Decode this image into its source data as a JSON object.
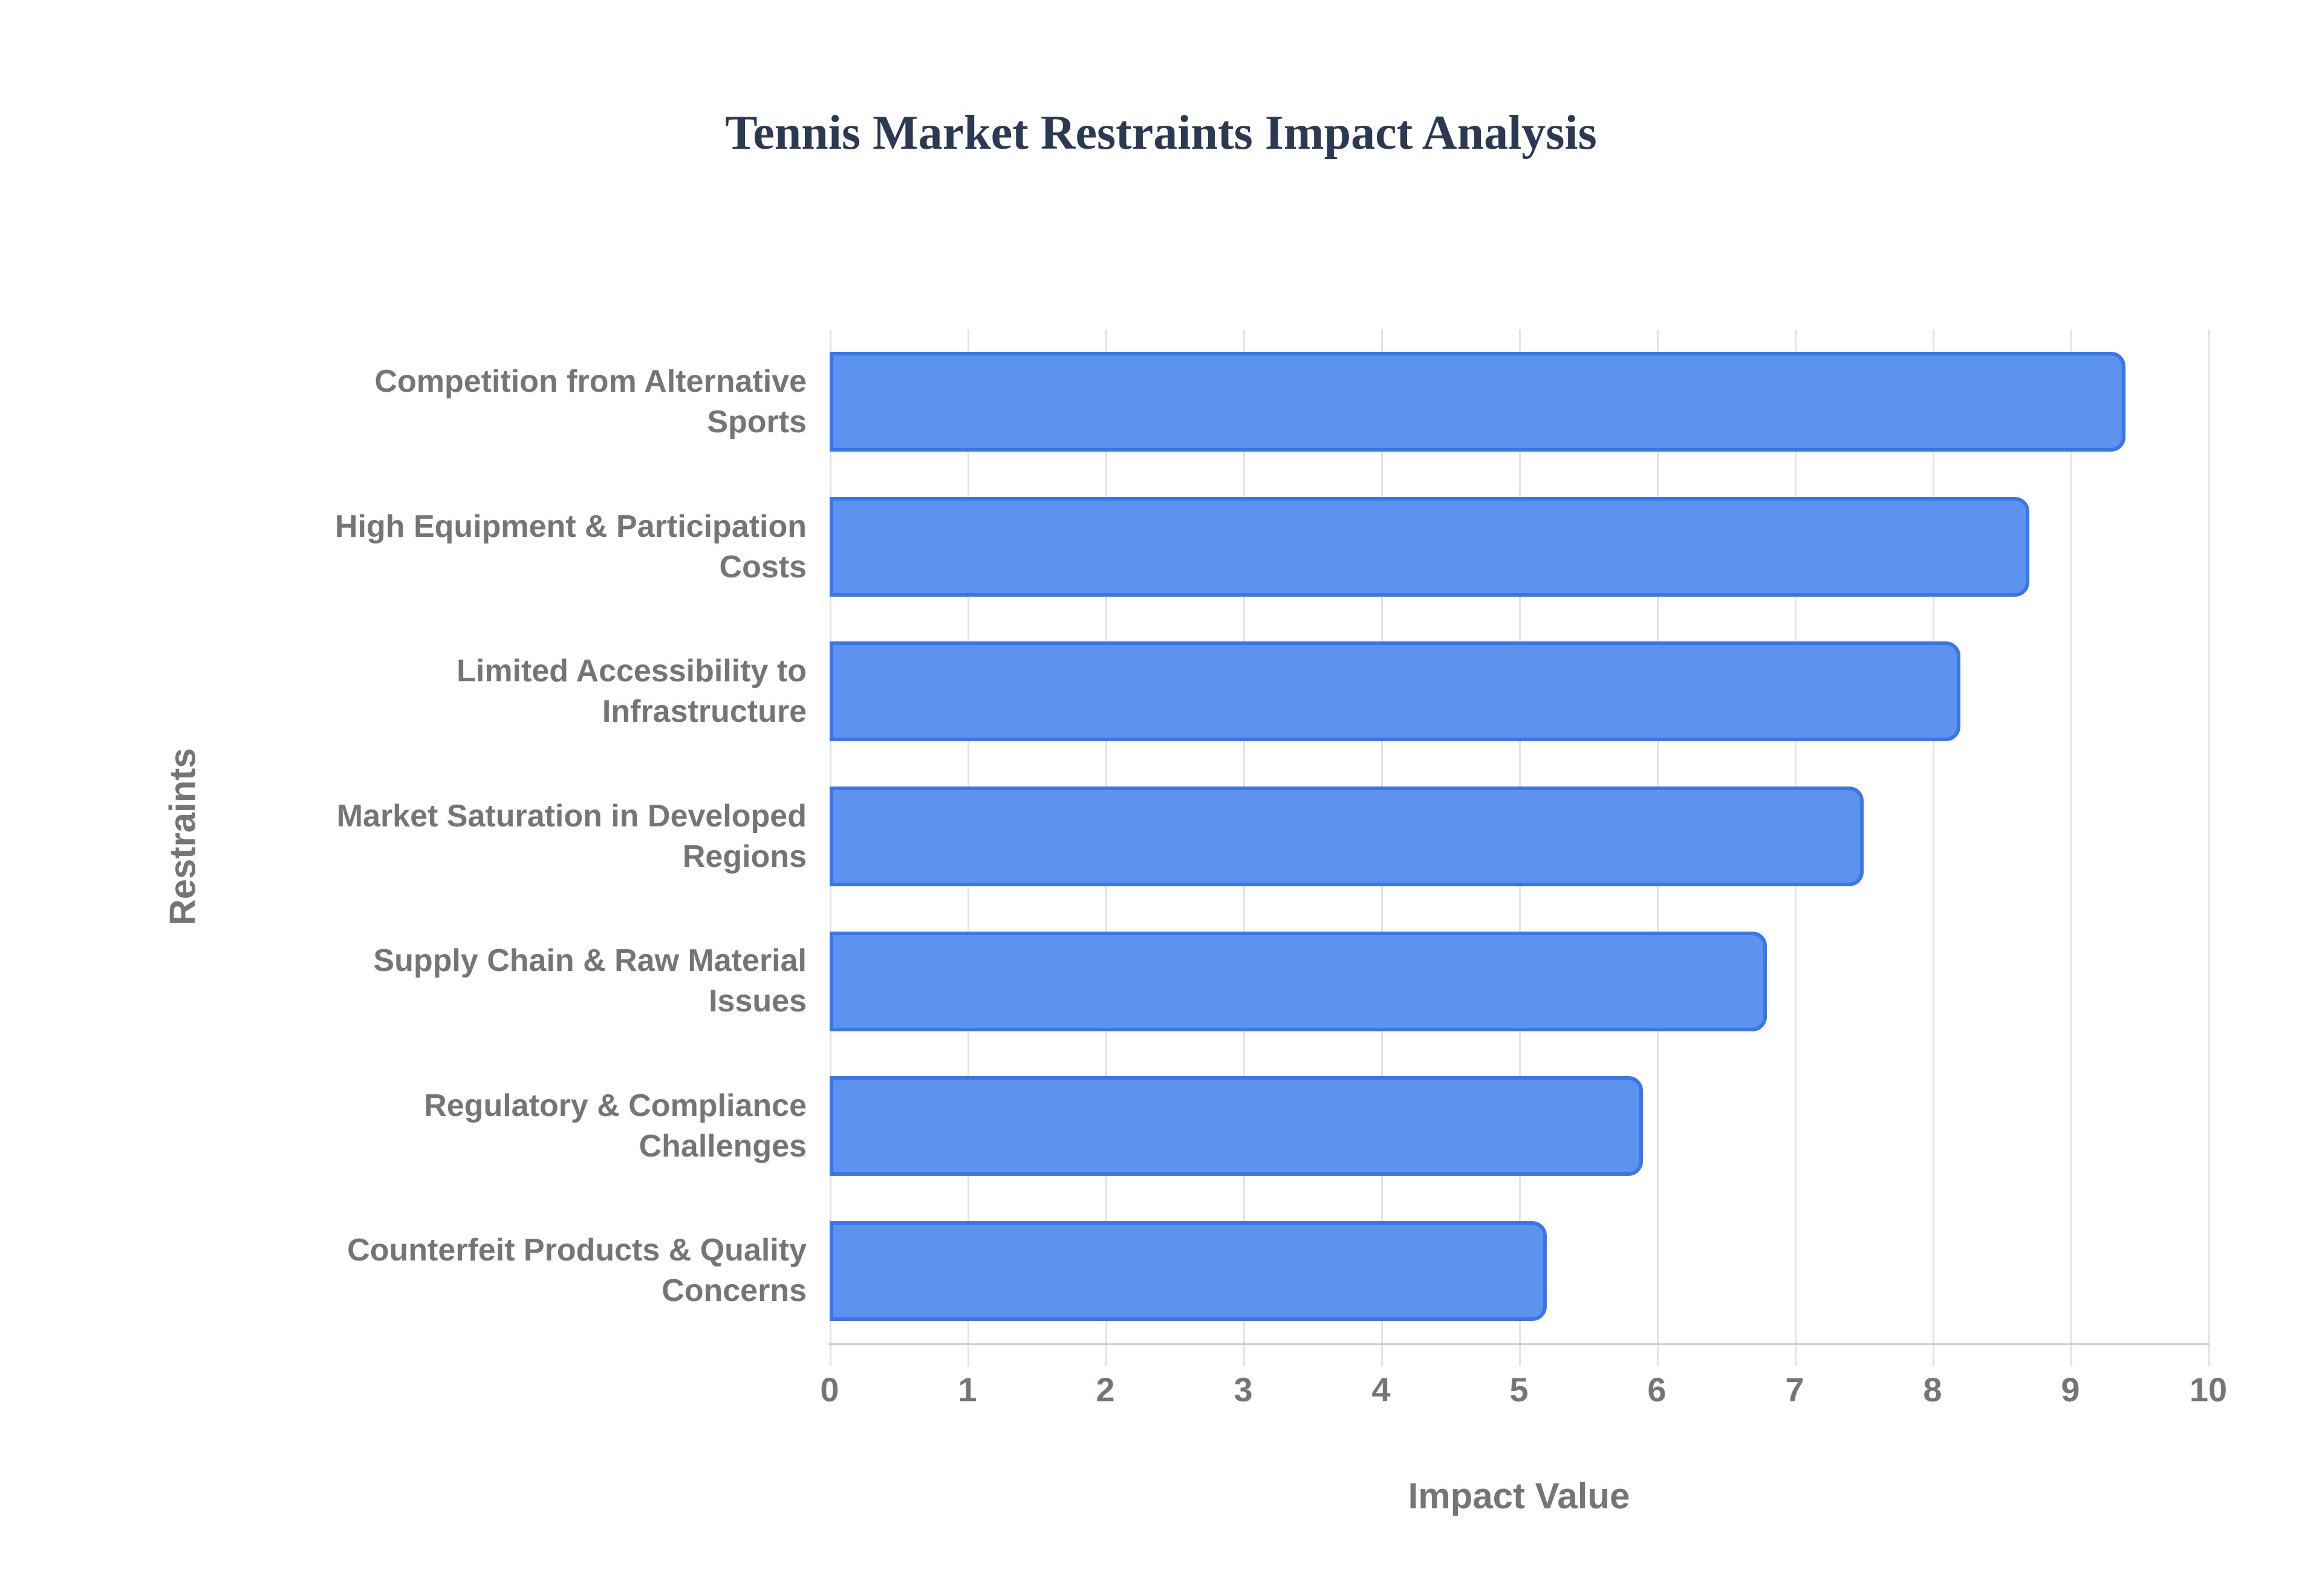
{
  "title": {
    "text": "Tennis Market Restraints Impact Analysis",
    "color": "#2b3a52"
  },
  "chart_data": {
    "type": "bar",
    "orientation": "horizontal",
    "title": "Tennis Market Restraints Impact Analysis",
    "categories": [
      "Competition from Alternative\nSports",
      "High Equipment & Participation\nCosts",
      "Limited Accessibility to\nInfrastructure",
      "Market Saturation in Developed\nRegions",
      "Supply Chain & Raw Material\nIssues",
      "Regulatory & Compliance\nChallenges",
      "Counterfeit Products & Quality\nConcerns"
    ],
    "values": [
      9.4,
      8.7,
      8.2,
      7.5,
      6.8,
      5.9,
      5.2
    ],
    "xlabel": "Impact Value",
    "ylabel": "Restraints",
    "xlim": [
      0,
      10
    ],
    "xticks": [
      "0",
      "1",
      "2",
      "3",
      "4",
      "5",
      "6",
      "7",
      "8",
      "9",
      "10"
    ],
    "grid": true,
    "legend": "none",
    "colors": {
      "bar_fill": "#5b93ee",
      "bar_stroke": "#3b76e8",
      "gridline": "#e3e3e3",
      "axis_line": "#cfcfcf",
      "label_gray": "#757575",
      "title_navy": "#2b3a52",
      "background": "#ffffff"
    }
  }
}
